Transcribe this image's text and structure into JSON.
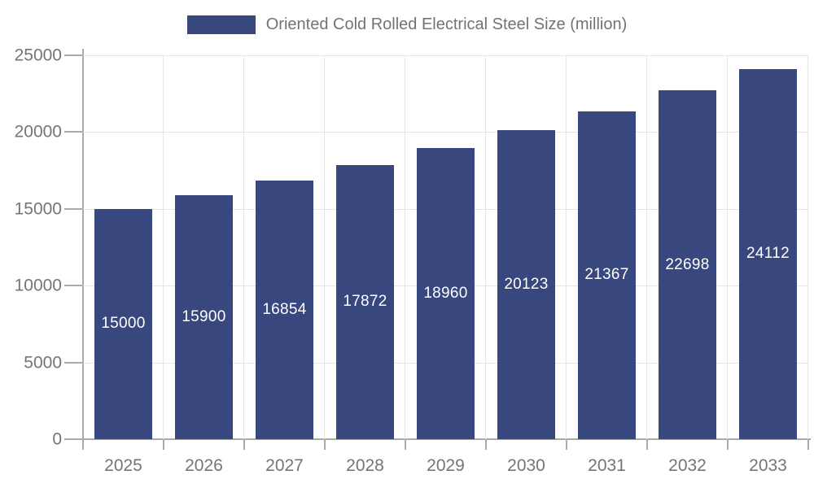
{
  "chart_data": {
    "type": "bar",
    "title": "",
    "categories": [
      "2025",
      "2026",
      "2027",
      "2028",
      "2029",
      "2030",
      "2031",
      "2032",
      "2033"
    ],
    "series": [
      {
        "name": "Oriented Cold Rolled Electrical Steel Size (million)",
        "values": [
          15000,
          15900,
          16854,
          17872,
          18960,
          20123,
          21367,
          22698,
          24112
        ]
      }
    ],
    "xlabel": "",
    "ylabel": "",
    "ylim": [
      0,
      25000
    ],
    "yticks": [
      0,
      5000,
      10000,
      15000,
      20000,
      25000
    ],
    "grid": true,
    "legend_position": "top-center",
    "value_labels": "inside-center",
    "colors": {
      "bar": "#38487f",
      "bar_label": "#ffffff",
      "axis_text": "#757575",
      "legend_text": "#737373",
      "gridline": "#e4e4e4",
      "axis_line": "#a9a9a9",
      "background": "#ffffff"
    }
  }
}
